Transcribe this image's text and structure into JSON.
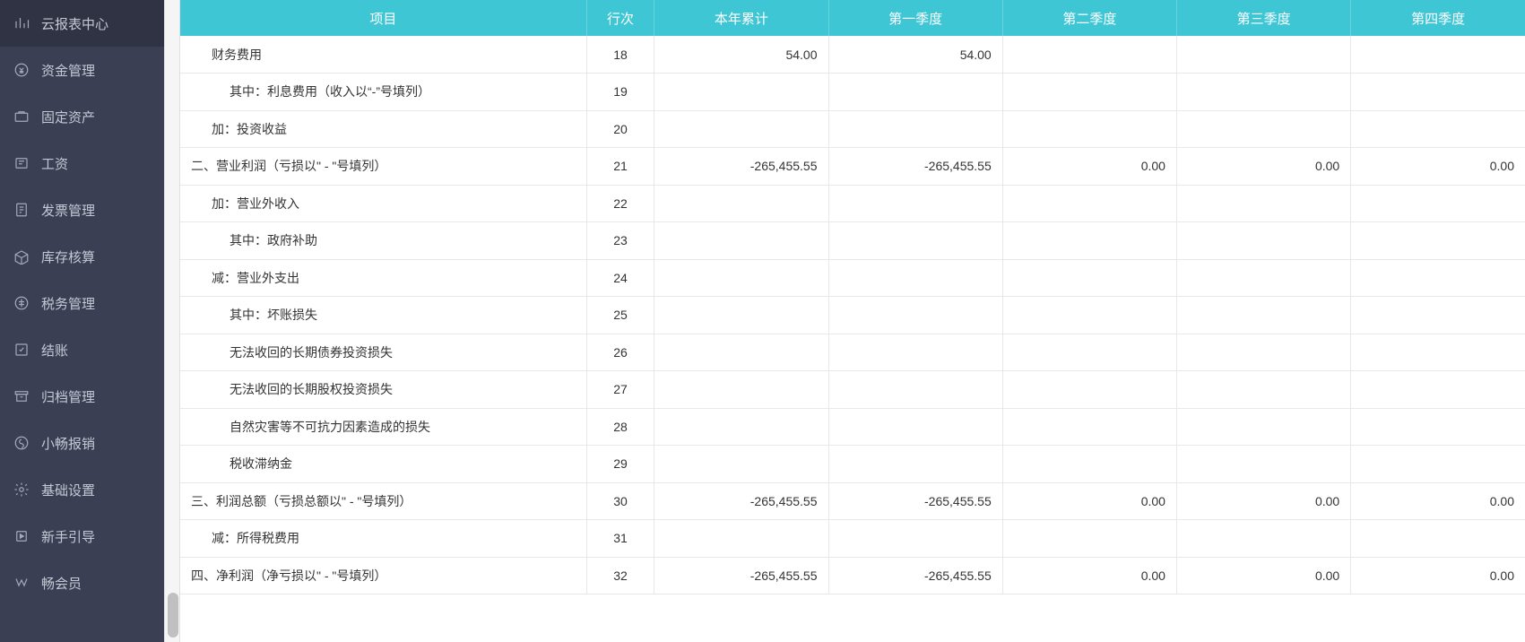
{
  "sidebar": {
    "items": [
      {
        "label": "云报表中心",
        "icon": "chart"
      },
      {
        "label": "资金管理",
        "icon": "money"
      },
      {
        "label": "固定资产",
        "icon": "asset"
      },
      {
        "label": "工资",
        "icon": "salary"
      },
      {
        "label": "发票管理",
        "icon": "invoice"
      },
      {
        "label": "库存核算",
        "icon": "inventory"
      },
      {
        "label": "税务管理",
        "icon": "tax"
      },
      {
        "label": "结账",
        "icon": "settle"
      },
      {
        "label": "归档管理",
        "icon": "archive"
      },
      {
        "label": "小畅报销",
        "icon": "reimburse"
      },
      {
        "label": "基础设置",
        "icon": "settings"
      },
      {
        "label": "新手引导",
        "icon": "guide"
      },
      {
        "label": "畅会员",
        "icon": "member"
      }
    ]
  },
  "table": {
    "header_bg": "#3fc6d4",
    "header_text": "#ffffff",
    "row_border": "#e8e8e8",
    "negative_color": "#e84c3d",
    "columns": [
      "项目",
      "行次",
      "本年累计",
      "第一季度",
      "第二季度",
      "第三季度",
      "第四季度"
    ],
    "rows": [
      {
        "indent": 1,
        "item": "财务费用",
        "row": "18",
        "ytd": "54.00",
        "q1": "54.00",
        "q2": "",
        "q3": "",
        "q4": ""
      },
      {
        "indent": 2,
        "item": "其中：利息费用（收入以“-”号填列）",
        "row": "19",
        "ytd": "",
        "q1": "",
        "q2": "",
        "q3": "",
        "q4": ""
      },
      {
        "indent": 1,
        "item": "加：投资收益",
        "row": "20",
        "ytd": "",
        "q1": "",
        "q2": "",
        "q3": "",
        "q4": ""
      },
      {
        "indent": 0,
        "item": "二、营业利润（亏损以\" - \"号填列）",
        "row": "21",
        "ytd": "-265,455.55",
        "q1": "-265,455.55",
        "q2": "0.00",
        "q3": "0.00",
        "q4": "0.00"
      },
      {
        "indent": 1,
        "item": "加：营业外收入",
        "row": "22",
        "ytd": "",
        "q1": "",
        "q2": "",
        "q3": "",
        "q4": ""
      },
      {
        "indent": 2,
        "item": "其中：政府补助",
        "row": "23",
        "ytd": "",
        "q1": "",
        "q2": "",
        "q3": "",
        "q4": ""
      },
      {
        "indent": 1,
        "item": "减：营业外支出",
        "row": "24",
        "ytd": "",
        "q1": "",
        "q2": "",
        "q3": "",
        "q4": ""
      },
      {
        "indent": 2,
        "item": "其中：坏账损失",
        "row": "25",
        "ytd": "",
        "q1": "",
        "q2": "",
        "q3": "",
        "q4": ""
      },
      {
        "indent": 2,
        "item": "无法收回的长期债券投资损失",
        "row": "26",
        "ytd": "",
        "q1": "",
        "q2": "",
        "q3": "",
        "q4": ""
      },
      {
        "indent": 2,
        "item": "无法收回的长期股权投资损失",
        "row": "27",
        "ytd": "",
        "q1": "",
        "q2": "",
        "q3": "",
        "q4": ""
      },
      {
        "indent": 2,
        "item": "自然灾害等不可抗力因素造成的损失",
        "row": "28",
        "ytd": "",
        "q1": "",
        "q2": "",
        "q3": "",
        "q4": ""
      },
      {
        "indent": 2,
        "item": "税收滞纳金",
        "row": "29",
        "ytd": "",
        "q1": "",
        "q2": "",
        "q3": "",
        "q4": ""
      },
      {
        "indent": 0,
        "item": "三、利润总额（亏损总额以\" - \"号填列）",
        "row": "30",
        "ytd": "-265,455.55",
        "q1": "-265,455.55",
        "q2": "0.00",
        "q3": "0.00",
        "q4": "0.00"
      },
      {
        "indent": 1,
        "item": "减：所得税费用",
        "row": "31",
        "ytd": "",
        "q1": "",
        "q2": "",
        "q3": "",
        "q4": ""
      },
      {
        "indent": 0,
        "item": "四、净利润（净亏损以\" - \"号填列）",
        "row": "32",
        "ytd": "-265,455.55",
        "q1": "-265,455.55",
        "q2": "0.00",
        "q3": "0.00",
        "q4": "0.00"
      }
    ]
  }
}
